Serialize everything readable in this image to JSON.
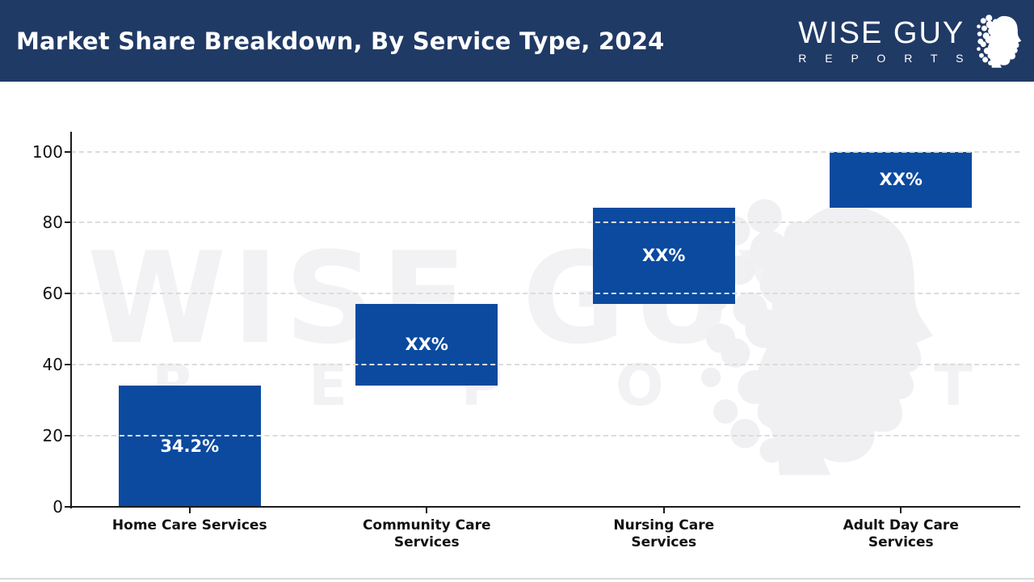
{
  "header": {
    "title": "Market Share Breakdown, By Service Type, 2024",
    "bg_color": "#203a66",
    "logo": {
      "line1": "WISE GUY",
      "line2": "R E P O R T S"
    }
  },
  "watermark": {
    "line1": "WISE GUY",
    "line2": "R E P O R T S"
  },
  "chart_data": {
    "type": "bar",
    "subtype": "waterfall",
    "title": "Market Share Breakdown, By Service Type, 2024",
    "categories": [
      "Home Care Services",
      "Community Care Services",
      "Nursing Care Services",
      "Adult Day Care Services"
    ],
    "category_label_lines": [
      [
        "Home Care Services"
      ],
      [
        "Community Care",
        "Services"
      ],
      [
        "Nursing Care",
        "Services"
      ],
      [
        "Adult Day Care",
        "Services"
      ]
    ],
    "segments": [
      {
        "category": "Home Care Services",
        "start": 0,
        "end": 34.2,
        "label": "34.2%"
      },
      {
        "category": "Community Care Services",
        "start": 34.2,
        "end": 57.2,
        "label": "XX%"
      },
      {
        "category": "Nursing Care Services",
        "start": 57.2,
        "end": 84.2,
        "label": "XX%"
      },
      {
        "category": "Adult Day Care Services",
        "start": 84.2,
        "end": 100,
        "label": "XX%"
      }
    ],
    "ylim": [
      0,
      100
    ],
    "yticks": [
      0,
      20,
      40,
      60,
      80,
      100
    ],
    "xlabel": "",
    "ylabel": "",
    "bar_color": "#0b4a9f",
    "grid": "horizontal-dashed",
    "legend": "none"
  }
}
